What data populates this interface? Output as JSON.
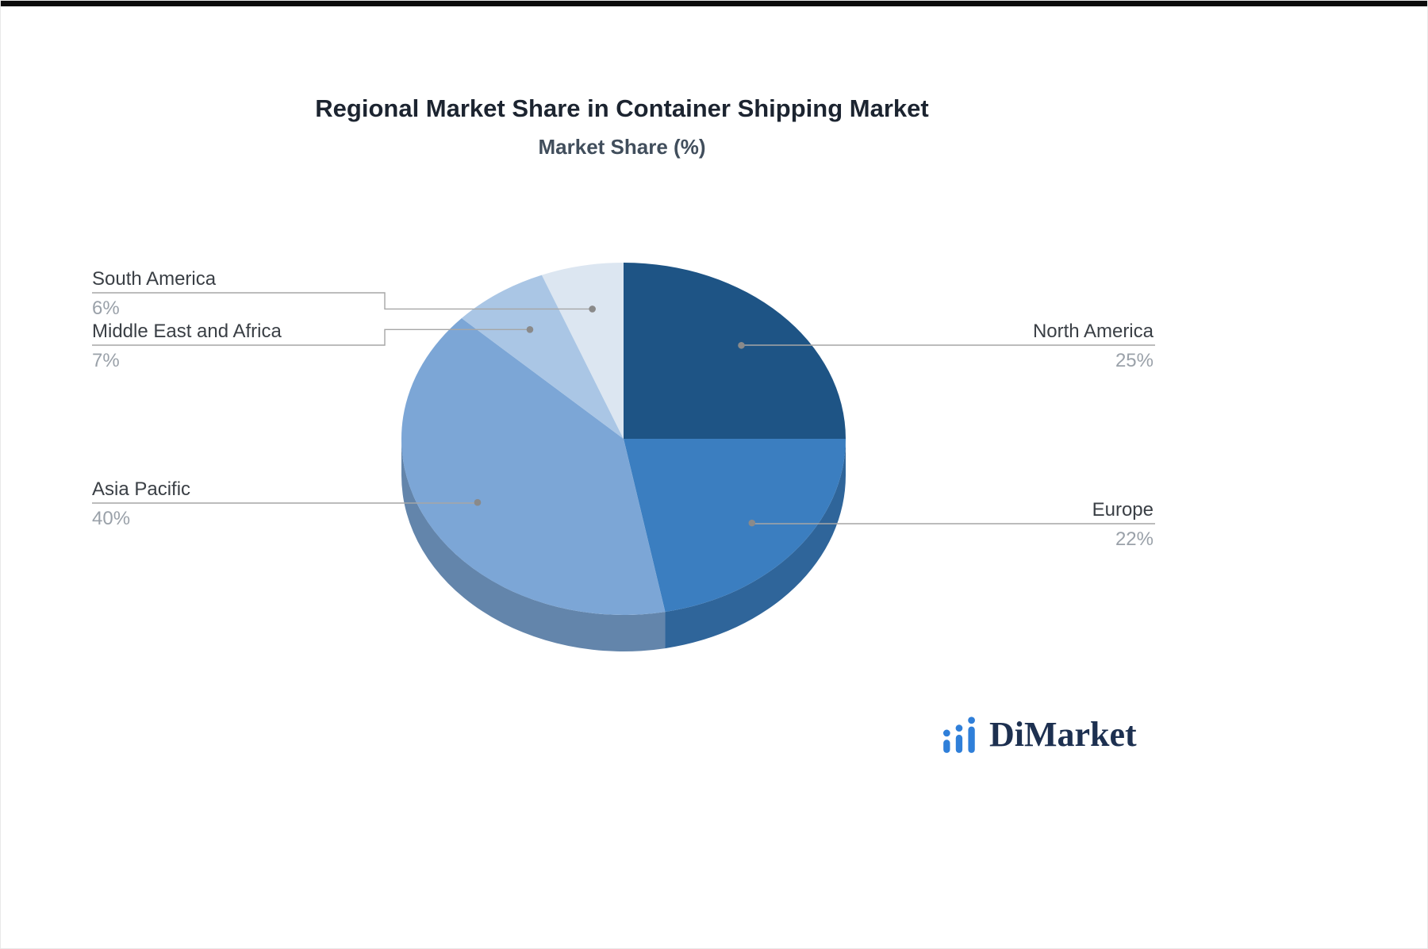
{
  "chart_data": {
    "type": "pie",
    "title": "Regional Market Share in Container Shipping Market",
    "subtitle": "Market Share (%)",
    "unit": "%",
    "direction": "clockwise",
    "start_angle_deg": 0,
    "effect": "3d",
    "legend_position": "none",
    "slices": [
      {
        "label": "North America",
        "value": 25,
        "display": "25%",
        "color": "#1e5485"
      },
      {
        "label": "Europe",
        "value": 22,
        "display": "22%",
        "color": "#3b7ec0"
      },
      {
        "label": "Asia Pacific",
        "value": 40,
        "display": "40%",
        "color": "#7ca6d6"
      },
      {
        "label": "Middle East and Africa",
        "value": 7,
        "display": "7%",
        "color": "#aac6e5"
      },
      {
        "label": "South America",
        "value": 6,
        "display": "6%",
        "color": "#dce6f1"
      }
    ]
  },
  "branding": {
    "logo_text": "DiMarket",
    "logo_icon": "bar-chart-icon",
    "logo_icon_color": "#2f7fd9",
    "logo_text_color": "#1d3050"
  },
  "style": {
    "callout_line_color": "#a6a6a6",
    "callout_dot_color": "#8a8a8a"
  }
}
